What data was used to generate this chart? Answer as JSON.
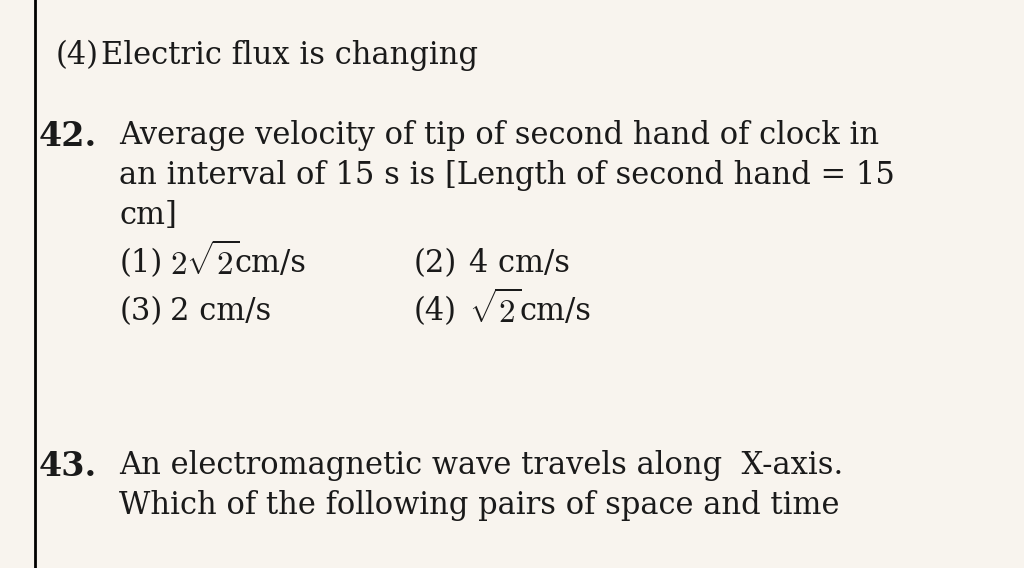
{
  "background_color": "#ffffff",
  "border_color": "#000000",
  "text_color": "#1a1a1a",
  "line1_num": "(4)",
  "line1_text": "Electric flux is changing",
  "q42_num": "42.",
  "q42_line1": "Average velocity of tip of second hand of clock in",
  "q42_line2": "an interval of 15 s is [Length of second hand = 15",
  "q42_line3": "cm]",
  "opt1_num": "(1)",
  "opt2_num": "(2)",
  "opt2_text": "4 cm/s",
  "opt3_num": "(3)",
  "opt3_text": "2 cm/s",
  "opt4_num": "(4)",
  "q43_num": "43.",
  "q43_line1": "An electromagnetic wave travels along  X-axis.",
  "q43_line2": "Which of the following pairs of space and time",
  "font_size_main": 22,
  "font_size_num": 24,
  "page_bg": "#f8f4ee"
}
